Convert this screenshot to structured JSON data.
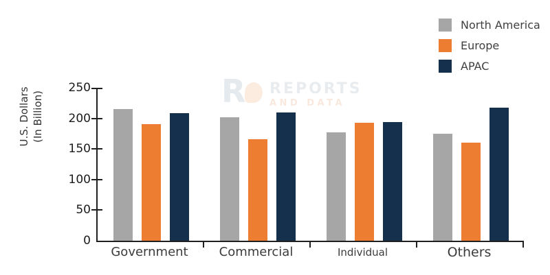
{
  "legend": {
    "items": [
      {
        "label": "North America",
        "color": "#a6a6a6"
      },
      {
        "label": "Europe",
        "color": "#ed7d31"
      },
      {
        "label": "APAC",
        "color": "#15304c"
      }
    ]
  },
  "y_axis": {
    "title_line1": "U.S. Dollars",
    "title_line2": "(In Billion)",
    "tick_values": [
      250,
      200,
      150,
      100,
      50,
      0
    ]
  },
  "watermark": {
    "logo_letter": "R",
    "line1": "REPORTS",
    "line2": "AND DATA"
  },
  "chart_data": {
    "type": "bar",
    "title": "",
    "xlabel": "",
    "ylabel": "U.S. Dollars (In Billion)",
    "ylim": [
      0,
      250
    ],
    "grid": false,
    "legend_position": "top-right",
    "categories": [
      "Government",
      "Commercial",
      "Individual",
      "Others"
    ],
    "series": [
      {
        "name": "North America",
        "color": "#a6a6a6",
        "values": [
          215,
          202,
          177,
          175
        ]
      },
      {
        "name": "Europe",
        "color": "#ed7d31",
        "values": [
          191,
          166,
          193,
          160
        ]
      },
      {
        "name": "APAC",
        "color": "#15304c",
        "values": [
          209,
          210,
          194,
          218
        ]
      }
    ]
  }
}
